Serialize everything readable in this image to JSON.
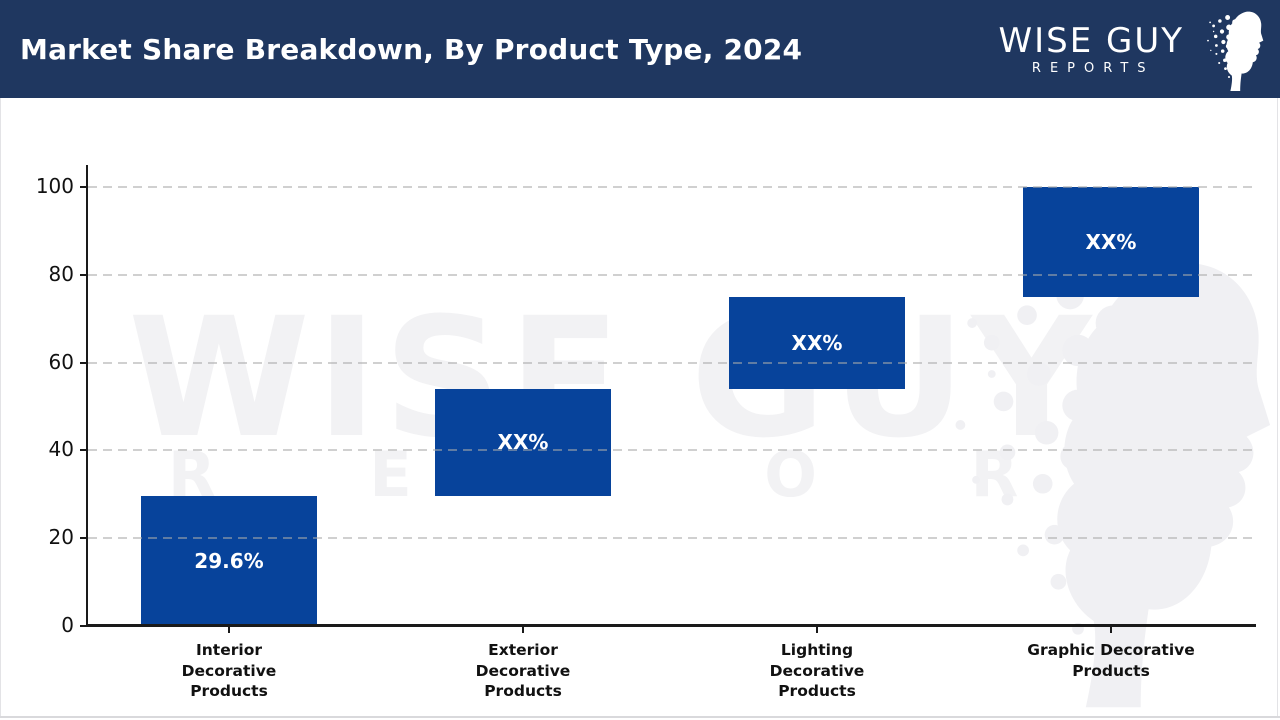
{
  "header": {
    "title": "Market Share Breakdown, By Product Type, 2024",
    "bg_color": "#1F3760",
    "brand": {
      "name": "WISE GUY",
      "sub": "REPORTS"
    }
  },
  "watermark": {
    "line1": "WISE GUY",
    "line2": "R E P O R T S"
  },
  "chart_data": {
    "type": "bar",
    "variant": "waterfall",
    "title": "Market Share Breakdown, By Product Type, 2024",
    "categories": [
      "Interior Decorative Products",
      "Exterior Decorative Products",
      "Lighting Decorative Products",
      "Graphic Decorative Products"
    ],
    "bars": [
      {
        "category_lines": [
          "Interior",
          "Decorative",
          "Products"
        ],
        "start": 0,
        "end": 29.6,
        "label": "29.6%"
      },
      {
        "category_lines": [
          "Exterior",
          "Decorative",
          "Products"
        ],
        "start": 29.6,
        "end": 54,
        "label": "XX%"
      },
      {
        "category_lines": [
          "Lighting",
          "Decorative",
          "Products"
        ],
        "start": 54,
        "end": 75,
        "label": "XX%"
      },
      {
        "category_lines": [
          "Graphic Decorative",
          "Products"
        ],
        "start": 75,
        "end": 100,
        "label": "XX%"
      }
    ],
    "yticks": [
      0,
      20,
      40,
      60,
      80,
      100
    ],
    "ylim": [
      0,
      105
    ],
    "bar_color": "#07439B",
    "grid": {
      "axis": "y",
      "style": "dashed"
    },
    "legend": "none",
    "xlabel": "",
    "ylabel": ""
  }
}
